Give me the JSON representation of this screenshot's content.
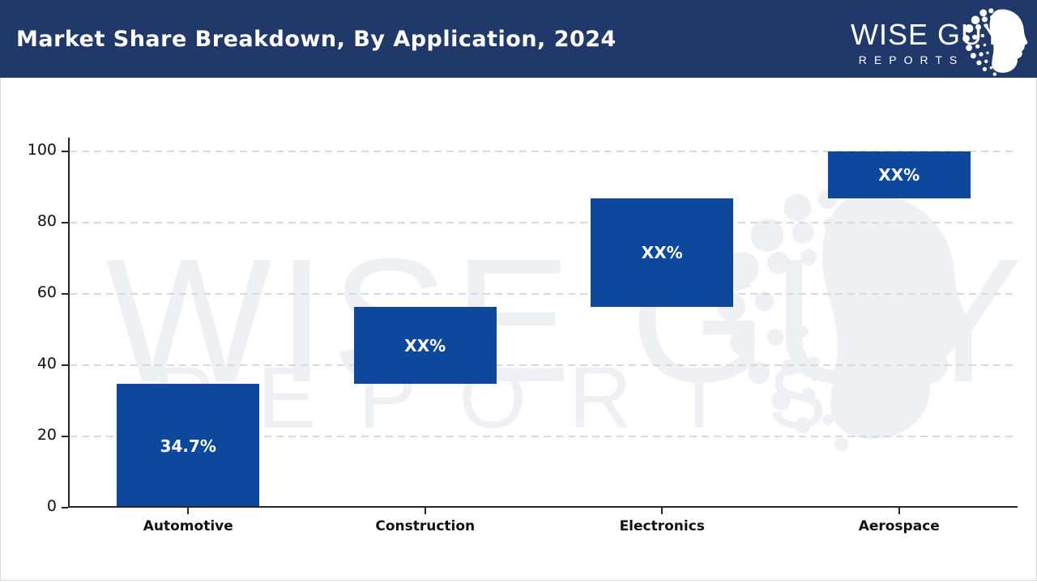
{
  "header": {
    "title": "Market Share Breakdown, By Application, 2024",
    "bg_color": "#20386A",
    "logo": {
      "line1": "WISE GUY",
      "line2": "REPORTS"
    }
  },
  "watermark": {
    "line1": "WISE GUY",
    "line2": "REPORTS",
    "color": "#eff0f4"
  },
  "chart_data": {
    "type": "bar",
    "subtype": "waterfall",
    "title": "Market Share Breakdown, By Application, 2024",
    "categories": [
      "Automotive",
      "Construction",
      "Electronics",
      "Aerospace"
    ],
    "segments": [
      {
        "category": "Automotive",
        "start": 0,
        "end": 34.7,
        "label": "34.7%"
      },
      {
        "category": "Construction",
        "start": 34.7,
        "end": 56.4,
        "label": "XX%"
      },
      {
        "category": "Electronics",
        "start": 56.4,
        "end": 86.8,
        "label": "XX%"
      },
      {
        "category": "Aerospace",
        "start": 86.8,
        "end": 100,
        "label": "XX%"
      }
    ],
    "yticks": [
      0,
      20,
      40,
      60,
      80,
      100
    ],
    "ylim": [
      0,
      100
    ],
    "xlabel": "",
    "ylabel": "",
    "grid": "horizontal-dashed",
    "legend": "none",
    "colors": {
      "bar": "#0D489C",
      "bar_label": "#ffffff",
      "axis": "#262626",
      "gridline": "#d9d9d9",
      "tick_label": "#111111"
    }
  }
}
